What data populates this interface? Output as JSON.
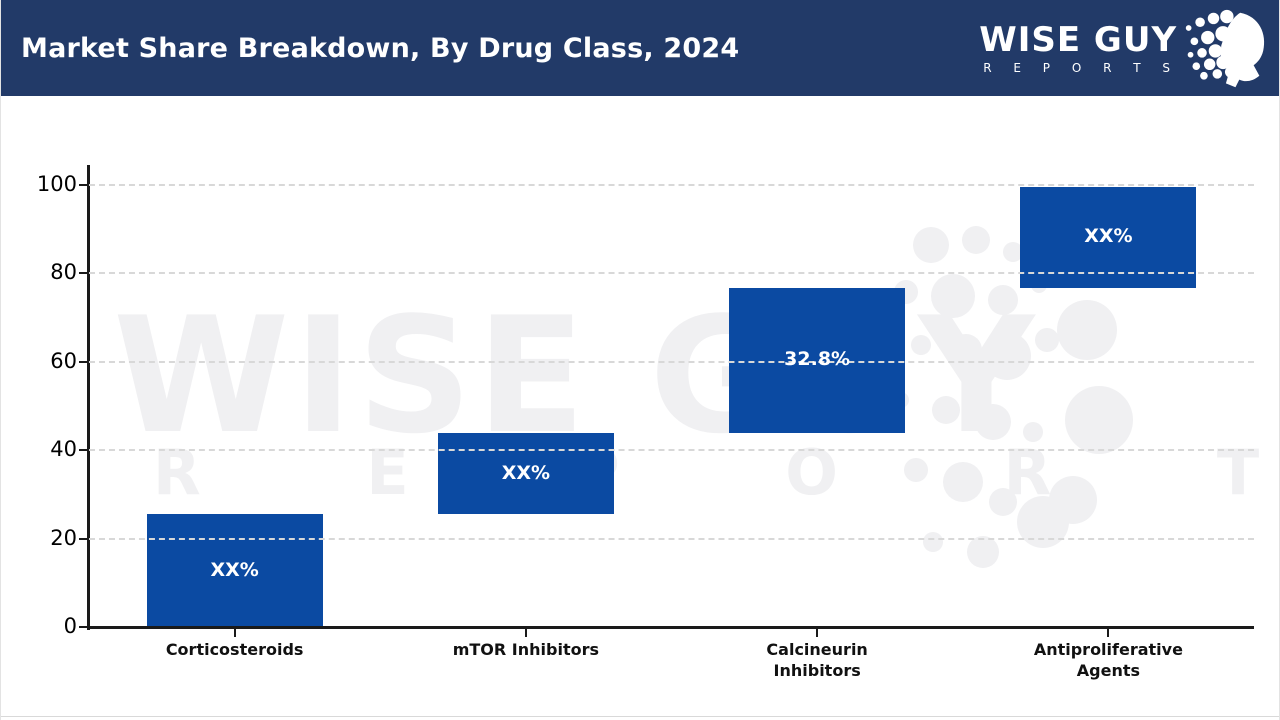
{
  "header": {
    "title": "Market Share Breakdown, By Drug Class, 2024",
    "logo": {
      "wordmark": "WISE GUY",
      "subtext": "R E P O R T S"
    }
  },
  "watermark": {
    "line1": "WISE GUY",
    "line2": "R E P O R T S"
  },
  "colors": {
    "header_bg": "#223A68",
    "bar": "#0B4AA2",
    "grid": "#D8D8D8",
    "axis": "#1A1A1A",
    "watermark": "#F0F0F2",
    "bar_label": "#FFFFFF",
    "tick_label": "#000000"
  },
  "chart_data": {
    "type": "bar",
    "subtype": "waterfall",
    "title": "Market Share Breakdown, By Drug Class, 2024",
    "xlabel": "",
    "ylabel": "",
    "ylim": [
      0,
      100
    ],
    "yticks": [
      0,
      20,
      40,
      60,
      80,
      100
    ],
    "grid": "horizontal-dashed",
    "legend": false,
    "categories": [
      "Corticosteroids",
      "mTOR Inhibitors",
      "Calcineurin Inhibitors",
      "Antiproliferative Agents"
    ],
    "segments": [
      {
        "category": "Corticosteroids",
        "start": 0,
        "end": 25.5,
        "label": "XX%"
      },
      {
        "category": "mTOR Inhibitors",
        "start": 25.5,
        "end": 43.9,
        "label": "XX%"
      },
      {
        "category": "Calcineurin Inhibitors",
        "start": 43.9,
        "end": 76.7,
        "label": "32.8%"
      },
      {
        "category": "Antiproliferative Agents",
        "start": 76.7,
        "end": 99.6,
        "label": "XX%"
      }
    ]
  }
}
